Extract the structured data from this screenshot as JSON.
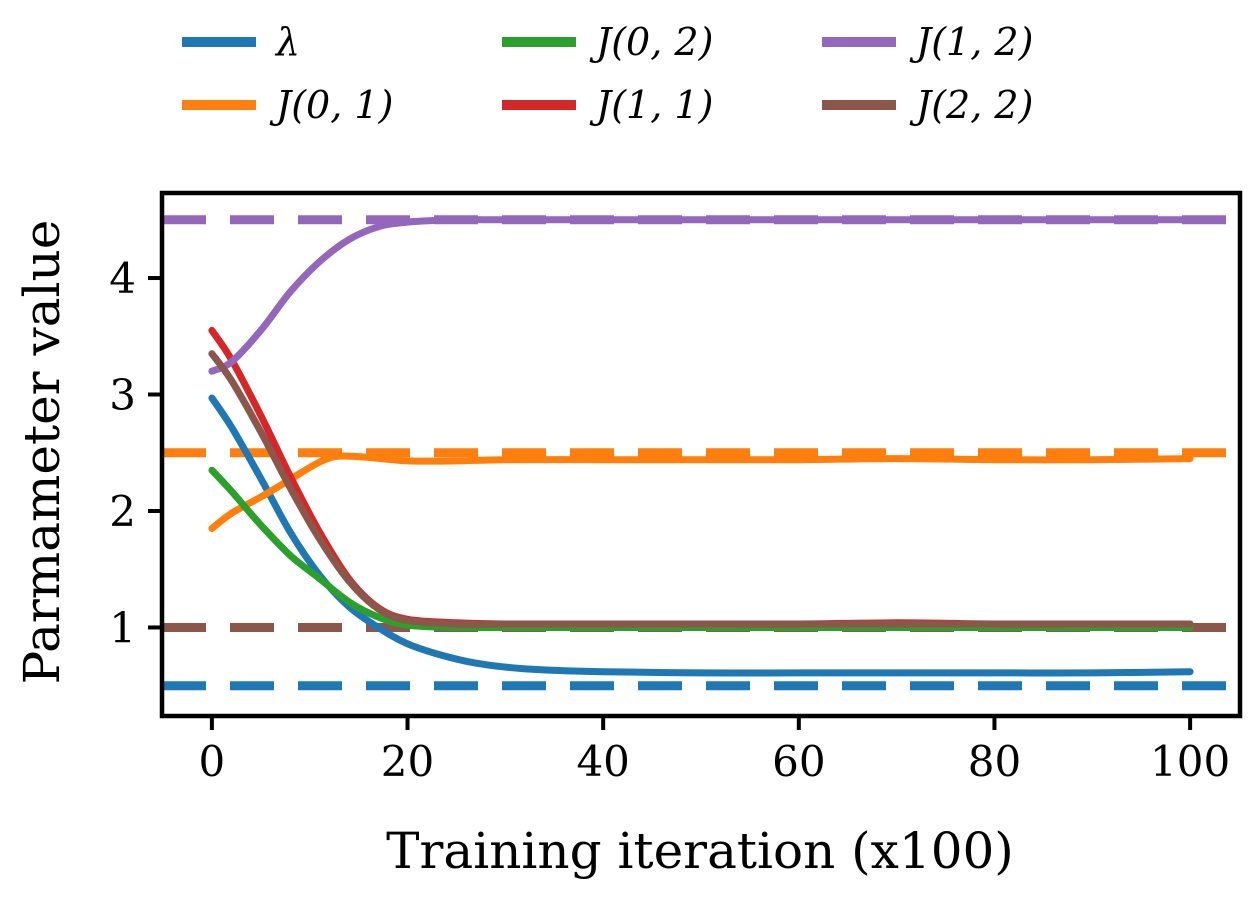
{
  "chart_data": {
    "type": "line",
    "title": "",
    "xlabel": "Training iteration (x100)",
    "ylabel": "Parmameter value",
    "xlim": [
      -5.1,
      105.1
    ],
    "ylim": [
      0.24,
      4.73
    ],
    "xticks": [
      0,
      20,
      40,
      60,
      80,
      100
    ],
    "yticks": [
      1,
      2,
      3,
      4
    ],
    "grid": false,
    "legend_position": "top",
    "legend_columns": 3,
    "series": [
      {
        "id": "lambda",
        "label": "λ",
        "color": "#1f77b4",
        "target": 0.5,
        "x": [
          0,
          2,
          5,
          8,
          11,
          14,
          17,
          20,
          24,
          28,
          33,
          40,
          50,
          60,
          70,
          80,
          90,
          100
        ],
        "y": [
          2.97,
          2.72,
          2.28,
          1.82,
          1.45,
          1.18,
          1.0,
          0.86,
          0.75,
          0.68,
          0.64,
          0.62,
          0.61,
          0.61,
          0.61,
          0.61,
          0.61,
          0.62
        ]
      },
      {
        "id": "J01",
        "label": "J(0, 1)",
        "color": "#ff7f0e",
        "target": 2.5,
        "x": [
          0,
          2,
          5,
          8,
          11,
          13,
          16,
          20,
          25,
          30,
          40,
          50,
          60,
          70,
          80,
          90,
          100
        ],
        "y": [
          1.85,
          1.98,
          2.12,
          2.27,
          2.42,
          2.47,
          2.46,
          2.43,
          2.43,
          2.44,
          2.44,
          2.44,
          2.44,
          2.45,
          2.44,
          2.44,
          2.45
        ]
      },
      {
        "id": "J02",
        "label": "J(0, 2)",
        "color": "#2ca02c",
        "target": 1.0,
        "x": [
          0,
          2,
          5,
          8,
          11,
          14,
          17,
          20,
          25,
          30,
          40,
          50,
          60,
          70,
          80,
          90,
          100
        ],
        "y": [
          2.35,
          2.17,
          1.88,
          1.62,
          1.42,
          1.22,
          1.09,
          1.02,
          1.0,
          1.0,
          1.0,
          1.0,
          1.0,
          1.0,
          1.0,
          1.0,
          1.0
        ]
      },
      {
        "id": "J11",
        "label": "J(1, 1)",
        "color": "#d62728",
        "target": 1.0,
        "x": [
          0,
          2,
          5,
          8,
          11,
          14,
          17,
          20,
          25,
          30,
          40,
          50,
          60,
          70,
          80,
          90,
          100
        ],
        "y": [
          3.55,
          3.3,
          2.82,
          2.3,
          1.82,
          1.42,
          1.17,
          1.07,
          1.04,
          1.03,
          1.03,
          1.03,
          1.03,
          1.04,
          1.03,
          1.03,
          1.03
        ]
      },
      {
        "id": "J12",
        "label": "J(1, 2)",
        "color": "#9467bd",
        "target": 4.5,
        "x": [
          0,
          2,
          5,
          8,
          11,
          14,
          17,
          20,
          25,
          30,
          40,
          50,
          60,
          70,
          80,
          90,
          100
        ],
        "y": [
          3.2,
          3.28,
          3.55,
          3.88,
          4.14,
          4.33,
          4.44,
          4.48,
          4.5,
          4.5,
          4.5,
          4.5,
          4.5,
          4.5,
          4.5,
          4.5,
          4.5
        ]
      },
      {
        "id": "J22",
        "label": "J(2, 2)",
        "color": "#8c564b",
        "target": 1.0,
        "x": [
          0,
          2,
          5,
          8,
          11,
          14,
          17,
          20,
          25,
          30,
          40,
          50,
          60,
          70,
          80,
          90,
          100
        ],
        "y": [
          3.35,
          3.12,
          2.68,
          2.2,
          1.76,
          1.4,
          1.16,
          1.06,
          1.03,
          1.03,
          1.03,
          1.03,
          1.03,
          1.03,
          1.03,
          1.03,
          1.03
        ]
      }
    ]
  }
}
